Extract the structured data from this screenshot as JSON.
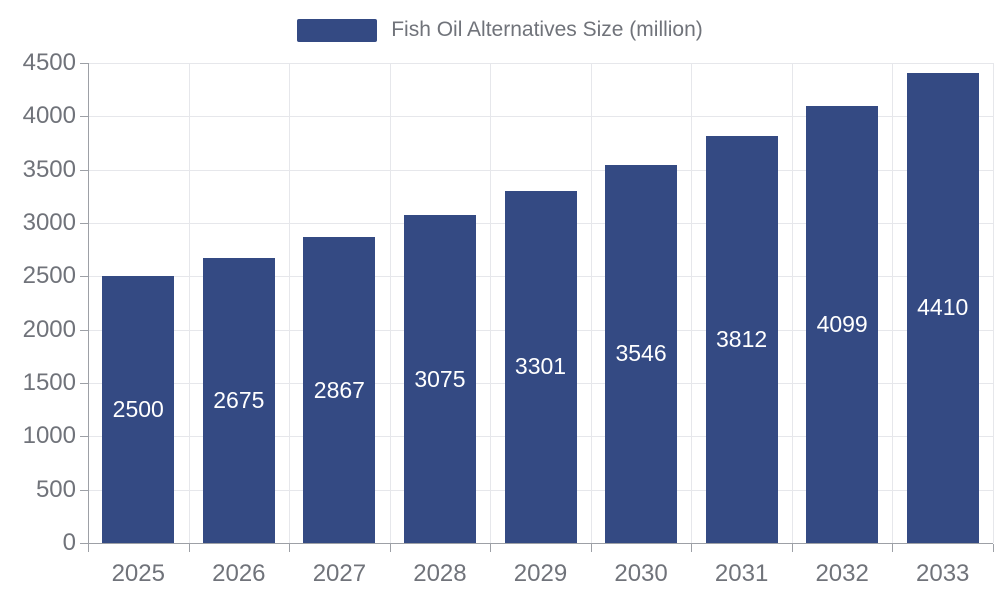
{
  "chart_data": {
    "type": "bar",
    "title": "Fish Oil Alternatives Size (million)",
    "legend": [
      "Fish Oil Alternatives Size (million)"
    ],
    "legend_position": "top-center",
    "categories": [
      "2025",
      "2026",
      "2027",
      "2028",
      "2029",
      "2030",
      "2031",
      "2032",
      "2033"
    ],
    "values": [
      2500,
      2675,
      2867,
      3075,
      3301,
      3546,
      3812,
      4099,
      4410
    ],
    "xlabel": "",
    "ylabel": "",
    "ylim": [
      0,
      4500
    ],
    "ytick_step": 500,
    "yticks": [
      0,
      500,
      1000,
      1500,
      2000,
      2500,
      3000,
      3500,
      4000,
      4500
    ],
    "grid": true,
    "value_labels_position": "inside-center",
    "colors": {
      "bar": "#344A83",
      "bar_value_label": "#FFFFFF",
      "axis_text": "#70737A",
      "axis_line": "#9DA0A6",
      "grid_line": "#E6E7EB",
      "background": "#FFFFFF"
    }
  }
}
